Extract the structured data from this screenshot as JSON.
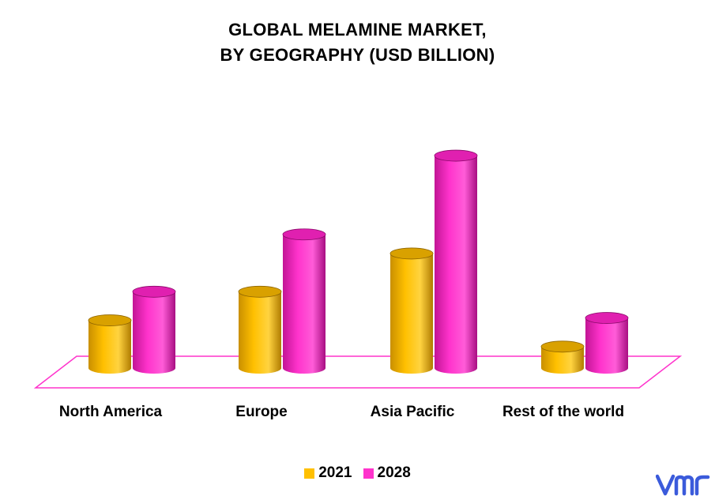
{
  "colors": {
    "series_2021": "#FFC000",
    "series_2028": "#FF33CC",
    "floor": "#FF33CC",
    "logo": "#3B5BDB"
  },
  "chart_data": {
    "type": "bar",
    "title_lines": [
      "GLOBAL MELAMINE MARKET,",
      "BY GEOGRAPHY (USD BILLION)"
    ],
    "categories": [
      "North America",
      "Europe",
      "Asia Pacific",
      "Rest of the world"
    ],
    "series": [
      {
        "name": "2021",
        "values": [
          1.0,
          1.6,
          2.4,
          0.45
        ]
      },
      {
        "name": "2028",
        "values": [
          1.6,
          2.8,
          4.45,
          1.05
        ]
      }
    ],
    "ylim": [
      0,
      4.6
    ],
    "grid": false,
    "legend_position": "bottom",
    "style": "3d-cylinder"
  },
  "logo": {
    "icon": "vmr-logo-icon"
  }
}
